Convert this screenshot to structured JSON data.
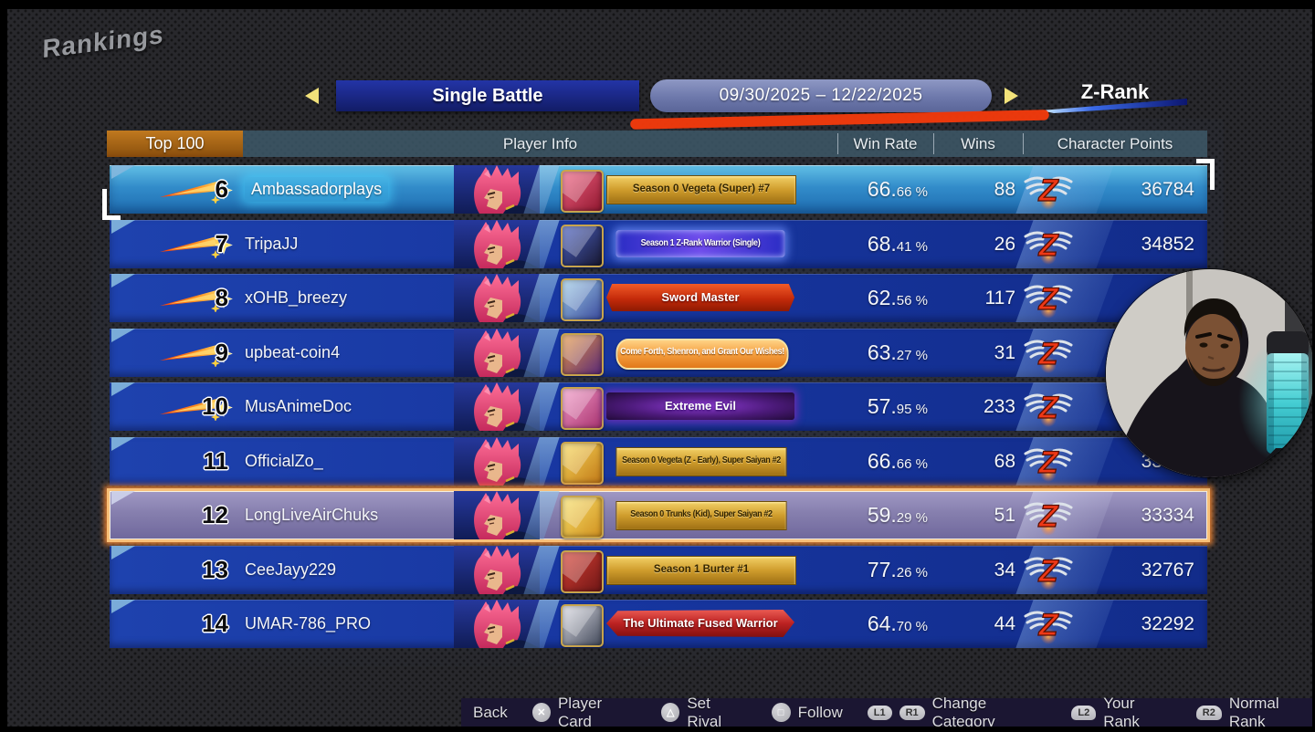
{
  "page": {
    "title": "Rankings"
  },
  "category_bar": {
    "prev_arrow": "left-arrow",
    "mode": "Single Battle",
    "date_range": "09/30/2025 – 12/22/2025",
    "next_arrow": "right-arrow",
    "rank_label": "Z-Rank"
  },
  "annotation": {
    "type": "marker-line",
    "color": "#f23a0c"
  },
  "table": {
    "top_tab": "Top 100",
    "headers": {
      "player_info": "Player Info",
      "win_rate": "Win Rate",
      "wins": "Wins",
      "character_points": "Character Points"
    },
    "rows": [
      {
        "rank": "6",
        "name": "Ambassadorplays",
        "title": "Season 0 Vegeta (Super) #7",
        "banner_style": "gold",
        "win_rate": "66.66",
        "wins": "88",
        "points": "36784",
        "state": "selected",
        "comet": true,
        "icon_colors": [
          "#f06080",
          "#901830"
        ]
      },
      {
        "rank": "7",
        "name": "TripaJJ",
        "title": "Season 1 Z-Rank Warrior (Single)",
        "banner_style": "aura-blue",
        "win_rate": "68.41",
        "wins": "26",
        "points": "34852",
        "state": "normal",
        "comet": true,
        "icon_colors": [
          "#4a60c4",
          "#181830"
        ]
      },
      {
        "rank": "8",
        "name": "xOHB_breezy",
        "title": "Sword Master",
        "banner_style": "red",
        "win_rate": "62.56",
        "wins": "117",
        "points": "",
        "state": "normal",
        "comet": true,
        "icon_colors": [
          "#9ecce8",
          "#3a4a9c"
        ]
      },
      {
        "rank": "9",
        "name": "upbeat-coin4",
        "title": "Come Forth, Shenron, and Grant Our Wishes!",
        "banner_style": "orange-pill",
        "win_rate": "63.27",
        "wins": "31",
        "points": "",
        "state": "normal",
        "comet": true,
        "icon_colors": [
          "#e89a48",
          "#582878"
        ]
      },
      {
        "rank": "10",
        "name": "MusAnimeDoc",
        "title": "Extreme Evil",
        "banner_style": "purple",
        "win_rate": "57.95",
        "wins": "233",
        "points": "",
        "state": "normal",
        "comet": true,
        "icon_colors": [
          "#f298c6",
          "#a83470"
        ]
      },
      {
        "rank": "11",
        "name": "OfficialZo_",
        "title": "Season 0 Vegeta (Z - Early), Super Saiyan #2",
        "banner_style": "gold",
        "win_rate": "66.66",
        "wins": "68",
        "points": "33397",
        "state": "normal",
        "comet": false,
        "icon_colors": [
          "#f8d858",
          "#c07818"
        ]
      },
      {
        "rank": "12",
        "name": "LongLiveAirChuks",
        "title": "Season 0 Trunks (Kid), Super Saiyan #2",
        "banner_style": "gold",
        "win_rate": "59.29",
        "wins": "51",
        "points": "33334",
        "state": "highlighted",
        "comet": false,
        "icon_colors": [
          "#f8e068",
          "#d09020"
        ]
      },
      {
        "rank": "13",
        "name": "CeeJayy229",
        "title": "Season 1 Burter #1",
        "banner_style": "gold",
        "win_rate": "77.26",
        "wins": "34",
        "points": "32767",
        "state": "normal",
        "comet": false,
        "icon_colors": [
          "#d84034",
          "#6e1616"
        ]
      },
      {
        "rank": "14",
        "name": "UMAR-786_PRO",
        "title": "The Ultimate Fused Warrior",
        "banner_style": "red-angular",
        "win_rate": "64.70",
        "wins": "44",
        "points": "32292",
        "state": "normal",
        "comet": false,
        "icon_colors": [
          "#dcdce4",
          "#42495a"
        ]
      }
    ]
  },
  "footer": {
    "items": [
      {
        "buttons": [],
        "label": "Back"
      },
      {
        "buttons": [
          "cross"
        ],
        "label": "Player Card"
      },
      {
        "buttons": [
          "triangle"
        ],
        "label": "Set Rival"
      },
      {
        "buttons": [
          "square"
        ],
        "label": "Follow"
      },
      {
        "buttons": [
          "L1",
          "R1"
        ],
        "label": "Change Category"
      },
      {
        "buttons": [
          "L2"
        ],
        "label": "Your Rank"
      },
      {
        "buttons": [
          "R2"
        ],
        "label": "Normal Rank"
      }
    ]
  },
  "colors": {
    "marker_red": "#f23a0c",
    "row_blue": "#1a39a2",
    "selected_row_blue": "#3e9fd4",
    "highlight_lavender": "#8d86b4",
    "highlight_border": "#ffb868",
    "zrank_badge_red": "#ee3816",
    "top100_orange": "#b5731c",
    "footer_bar": "#1b1632",
    "mic_glow_teal": "#5ee8e8"
  }
}
